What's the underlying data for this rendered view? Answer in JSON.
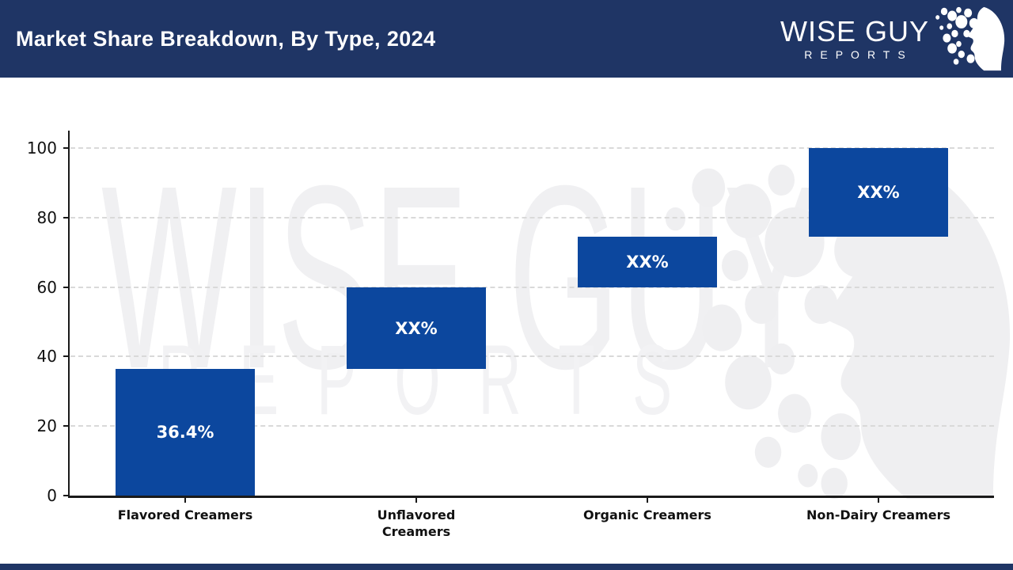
{
  "header": {
    "title": "Market Share Breakdown, By Type, 2024",
    "brand": {
      "line1": "WISE GUY",
      "line2": "REPORTS"
    }
  },
  "watermark": {
    "line1": "WISE GUY",
    "line2": "REPORTS"
  },
  "chart_data": {
    "type": "bar",
    "subtype": "waterfall",
    "title": "Market Share Breakdown, By Type, 2024",
    "categories": [
      "Flavored Creamers",
      "Unflavored\nCreamers",
      "Organic Creamers",
      "Non-Dairy Creamers"
    ],
    "bars": [
      {
        "category": "Flavored Creamers",
        "label": "36.4%",
        "start": 0,
        "end": 36.4
      },
      {
        "category": "Unflavored Creamers",
        "label": "XX%",
        "start": 36.4,
        "end": 59.9
      },
      {
        "category": "Organic Creamers",
        "label": "XX%",
        "start": 59.9,
        "end": 74.5
      },
      {
        "category": "Non-Dairy Creamers",
        "label": "XX%",
        "start": 74.5,
        "end": 100
      }
    ],
    "yticks": [
      0,
      20,
      40,
      60,
      80,
      100
    ],
    "ylim": [
      0,
      100
    ],
    "xlabel": "",
    "ylabel": "",
    "grid": "horizontal-dashed",
    "legend": "none"
  },
  "colors": {
    "header_bg": "#1f3565",
    "footer_bg": "#1f3565",
    "bar": "#0c479e",
    "bar_label": "#ffffff",
    "grid": "#d9d9d9",
    "axis": "#1a1a1a",
    "watermark": "#f0f0f2"
  },
  "icons": {
    "brand_face": "dotted-head-profile"
  }
}
